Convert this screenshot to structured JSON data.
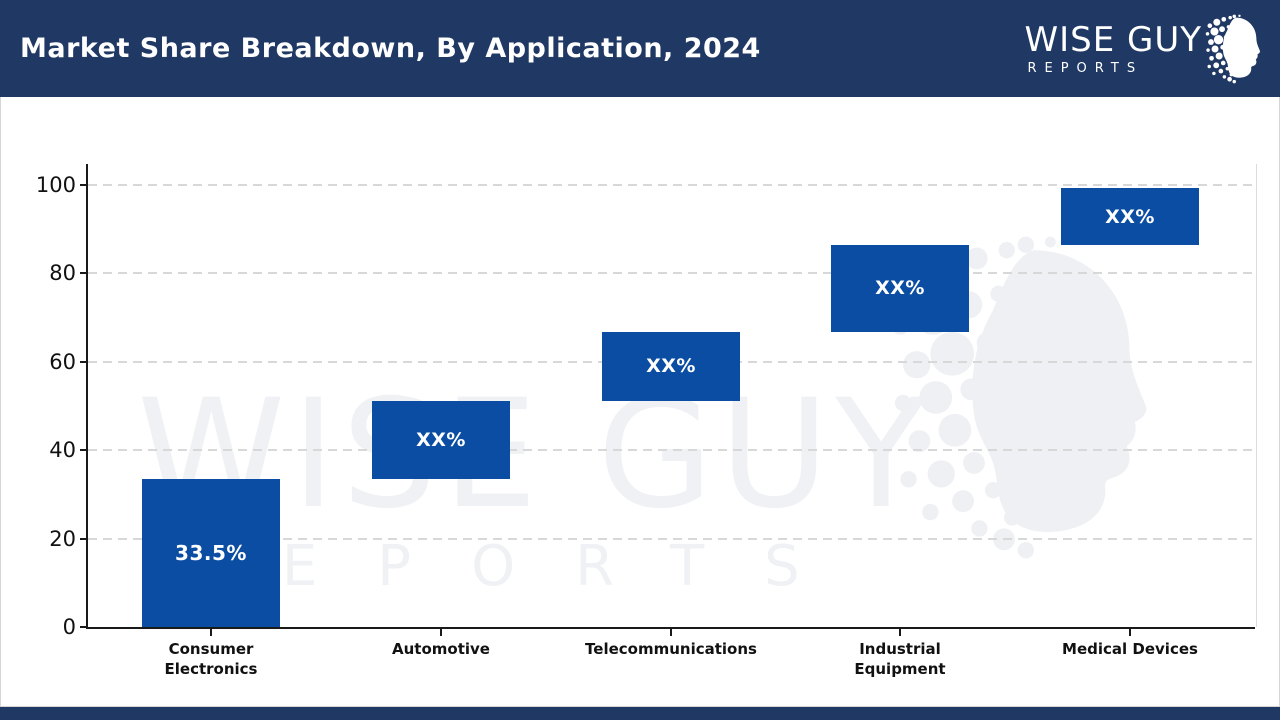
{
  "header": {
    "title": "Market Share Breakdown, By Application, 2024",
    "logo": {
      "line1": "WISE GUY",
      "line2": "REPORTS"
    }
  },
  "watermark": {
    "line1": "WISE GUY",
    "line2": "REPORTS"
  },
  "colors": {
    "header_bg": "#203864",
    "footer_bg": "#203864",
    "bar": "#0b4da2",
    "bar_label": "#ffffff",
    "gridline": "#d8d8d8",
    "axis": "#1a1a1a",
    "watermark": "#f0f1f4"
  },
  "chart_data": {
    "type": "bar",
    "subtype": "waterfall (floating cumulative bars)",
    "title": "Market Share Breakdown, By Application, 2024",
    "categories": [
      "Consumer Electronics",
      "Automotive",
      "Telecommunications",
      "Industrial Equipment",
      "Medical Devices"
    ],
    "category_label_lines": [
      [
        "Consumer",
        "Electronics"
      ],
      [
        "Automotive"
      ],
      [
        "Telecommunications"
      ],
      [
        "Industrial",
        "Equipment"
      ],
      [
        "Medical Devices"
      ]
    ],
    "segments": [
      {
        "category": "Consumer Electronics",
        "start": 0,
        "end": 33.5,
        "label": "33.5%"
      },
      {
        "category": "Automotive",
        "start": 33.5,
        "end": 51.2,
        "label": "XX%"
      },
      {
        "category": "Telecommunications",
        "start": 51.2,
        "end": 66.8,
        "label": "XX%"
      },
      {
        "category": "Industrial Equipment",
        "start": 66.8,
        "end": 86.4,
        "label": "XX%"
      },
      {
        "category": "Medical Devices",
        "start": 86.4,
        "end": 99.3,
        "label": "XX%"
      }
    ],
    "xlabel": "",
    "ylabel": "",
    "ylim": [
      0,
      100
    ],
    "yticks": [
      0,
      20,
      40,
      60,
      80,
      100
    ],
    "grid": "horizontal dashed lines at each y tick",
    "legend": "none",
    "value_note": "all bars except Consumer Electronics show masked placeholder XX%"
  }
}
